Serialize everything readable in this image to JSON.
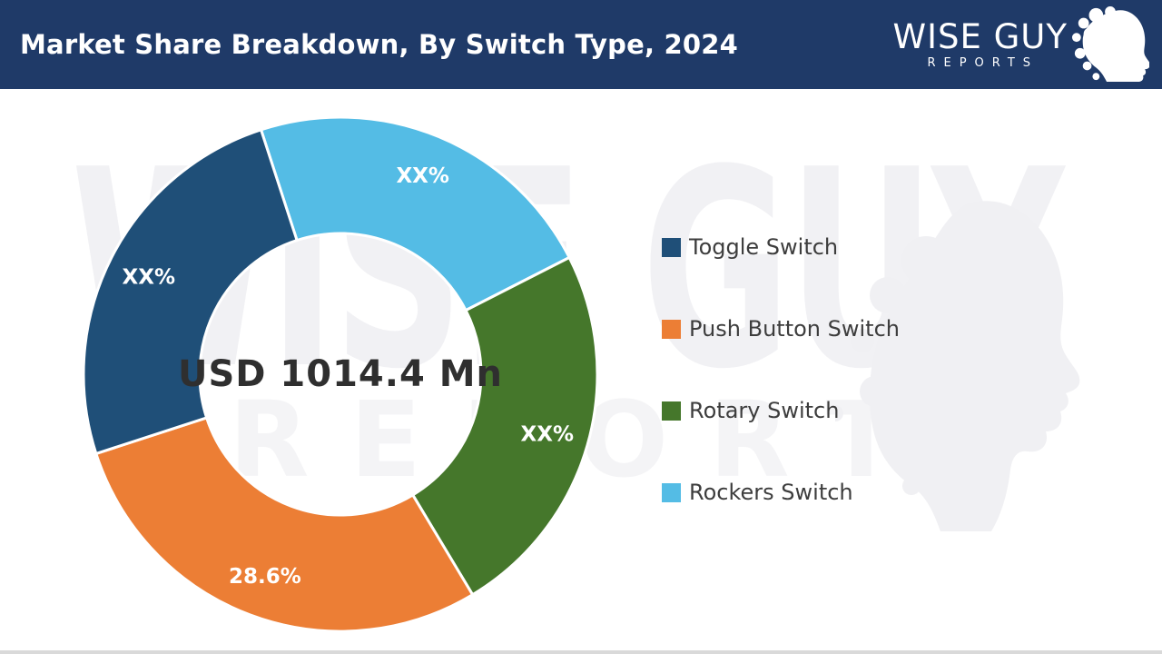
{
  "header": {
    "title": "Market Share Breakdown, By Switch Type, 2024",
    "logo": {
      "wordmark": "WISE GUY",
      "subtext": "REPORTS"
    }
  },
  "chart_data": {
    "type": "donut",
    "title": "Market Share Breakdown, By Switch Type, 2024",
    "center_label": "USD 1014.4 Mn",
    "rotation_deg": -18,
    "legend_position": "right",
    "grid": false,
    "segments": [
      {
        "name": "Rockers Switch",
        "display_label": "XX%",
        "value_pct_est": 22.5,
        "color": "#54BCE5"
      },
      {
        "name": "Rotary Switch",
        "display_label": "XX%",
        "value_pct_est": 23.9,
        "color": "#45772B"
      },
      {
        "name": "Push Button Switch",
        "display_label": "28.6%",
        "value_pct_est": 28.6,
        "color": "#EC7E35"
      },
      {
        "name": "Toggle Switch",
        "display_label": "XX%",
        "value_pct_est": 25.0,
        "color": "#1F4F78"
      }
    ]
  },
  "legend": {
    "items": [
      {
        "label": "Toggle Switch",
        "color": "#1F4F78"
      },
      {
        "label": "Push Button Switch",
        "color": "#EC7E35"
      },
      {
        "label": "Rotary Switch",
        "color": "#45772B"
      },
      {
        "label": "Rockers Switch",
        "color": "#54BCE5"
      }
    ]
  },
  "watermark": {
    "line1": "WISE GUY",
    "line2": "REPORTS"
  },
  "colors": {
    "header_bg": "#1F3A68",
    "bottom_bar": "#D9D9D9",
    "center_text": "#2F2F2F",
    "legend_text": "#3D3D3D",
    "watermark": "#F1F1F4"
  }
}
